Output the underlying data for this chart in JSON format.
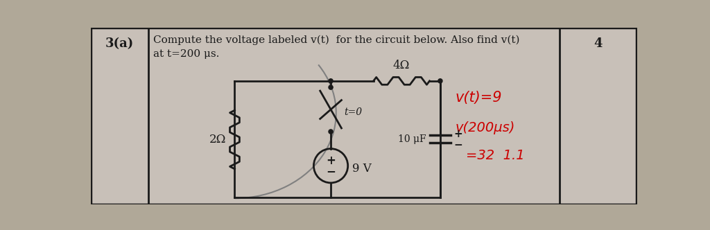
{
  "background_color": "#b0a898",
  "border_color": "#000000",
  "text_label": "3(a)",
  "question_text_line1": "Compute the voltage labeled v(t)  for the circuit below. Also find v(t)",
  "question_text_line2": "at t=200 μs.",
  "marks": "4",
  "circuit": {
    "resistor_top": "4Ω",
    "resistor_left": "2Ω",
    "capacitor": "10 μF",
    "voltage_source": "9 V",
    "switch_label": "t=0"
  },
  "annotation_line1": "v(t)=9",
  "annotation_line2": "v(200μs)",
  "annotation_line3": "=32  1.1",
  "annotation_color": "#cc0000",
  "cell_bg": "#c8c0b8",
  "line_color": "#1a1a1a"
}
